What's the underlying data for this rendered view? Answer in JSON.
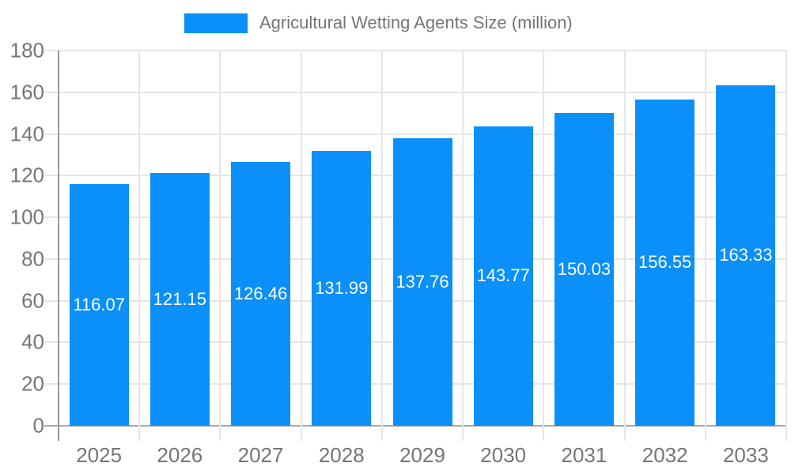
{
  "legend": {
    "label": "Agricultural Wetting Agents Size (million)"
  },
  "chart_data": {
    "type": "bar",
    "title": "Agricultural Wetting Agents Size (million)",
    "categories": [
      "2025",
      "2026",
      "2027",
      "2028",
      "2029",
      "2030",
      "2031",
      "2032",
      "2033"
    ],
    "values": [
      116.07,
      121.15,
      126.46,
      131.99,
      137.76,
      143.77,
      150.03,
      156.55,
      163.33
    ],
    "value_labels": [
      "116.07",
      "121.15",
      "126.46",
      "131.99",
      "137.76",
      "143.77",
      "150.03",
      "156.55",
      "163.33"
    ],
    "xlabel": "",
    "ylabel": "",
    "ylim": [
      0,
      180
    ],
    "yticks": [
      0,
      20,
      40,
      60,
      80,
      100,
      120,
      140,
      160,
      180
    ],
    "grid": true,
    "legend_position": "top-center",
    "colors": {
      "bar": "#0a90f8",
      "gridline": "#e6e6e6",
      "y_axis_line": "#999999",
      "baseline": "#aaaaaa",
      "axis_text": "#757575",
      "legend_text": "#757575",
      "bar_label_text": "#ffffff",
      "background": "#ffffff"
    }
  }
}
